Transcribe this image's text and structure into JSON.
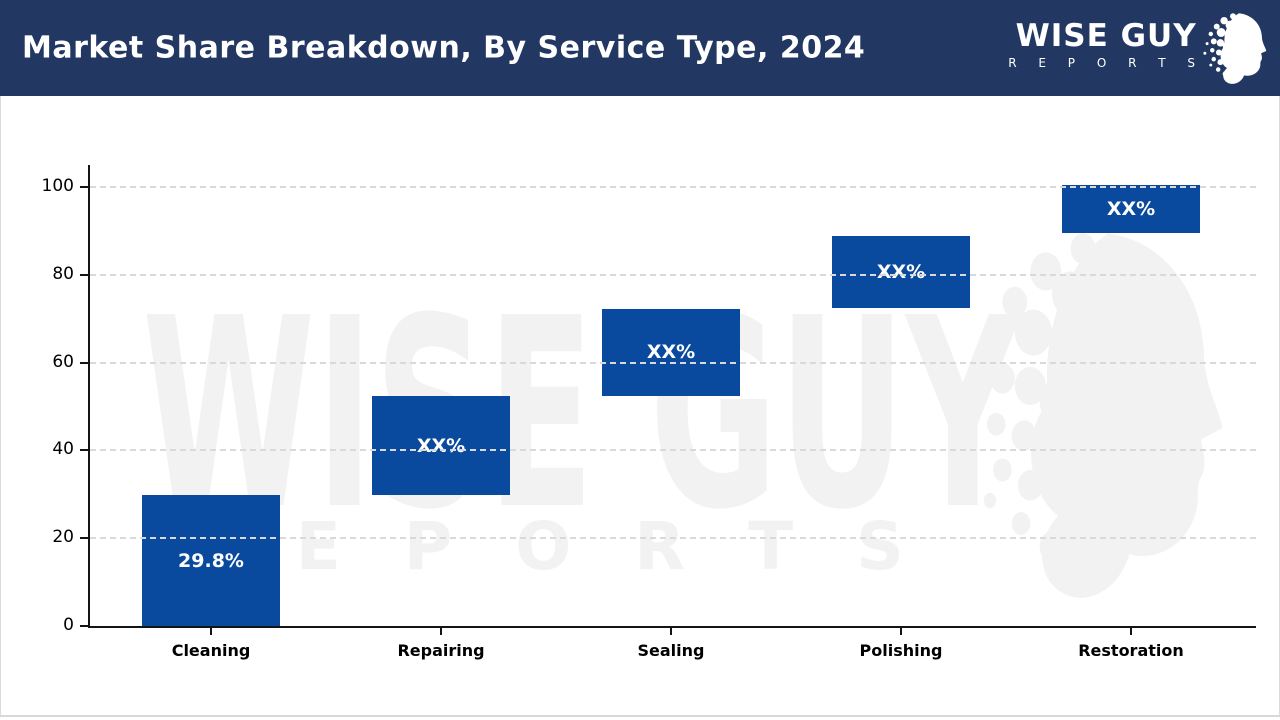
{
  "header": {
    "title": "Market Share Breakdown, By Service Type, 2024",
    "logo": {
      "name": "WISE GUY",
      "sub": "R E P O R T S"
    }
  },
  "watermark": {
    "line1": "WISE GUY",
    "line2": "R E P O R T S"
  },
  "chart_data": {
    "type": "bar",
    "variant": "waterfall",
    "title": "Market Share Breakdown, By Service Type, 2024",
    "categories": [
      "Cleaning",
      "Repairing",
      "Sealing",
      "Polishing",
      "Restoration"
    ],
    "segments": [
      {
        "category": "Cleaning",
        "start": 0,
        "end": 29.8,
        "label": "29.8%"
      },
      {
        "category": "Repairing",
        "start": 29.8,
        "end": 52.4,
        "label": "XX%"
      },
      {
        "category": "Sealing",
        "start": 52.4,
        "end": 72.2,
        "label": "XX%"
      },
      {
        "category": "Polishing",
        "start": 72.5,
        "end": 88.8,
        "label": "XX%"
      },
      {
        "category": "Restoration",
        "start": 89.5,
        "end": 100.4,
        "label": "XX%"
      }
    ],
    "yticks": [
      0,
      20,
      40,
      60,
      80,
      100
    ],
    "ylim": [
      0,
      105
    ],
    "xlabel": "",
    "ylabel": "",
    "grid": "horizontal-dashed",
    "legend": "none",
    "bar_color": "#0a4a9e",
    "bar_label_color": "#ffffff",
    "header_color": "#223862",
    "gridline_color": "#d9d9d9"
  }
}
